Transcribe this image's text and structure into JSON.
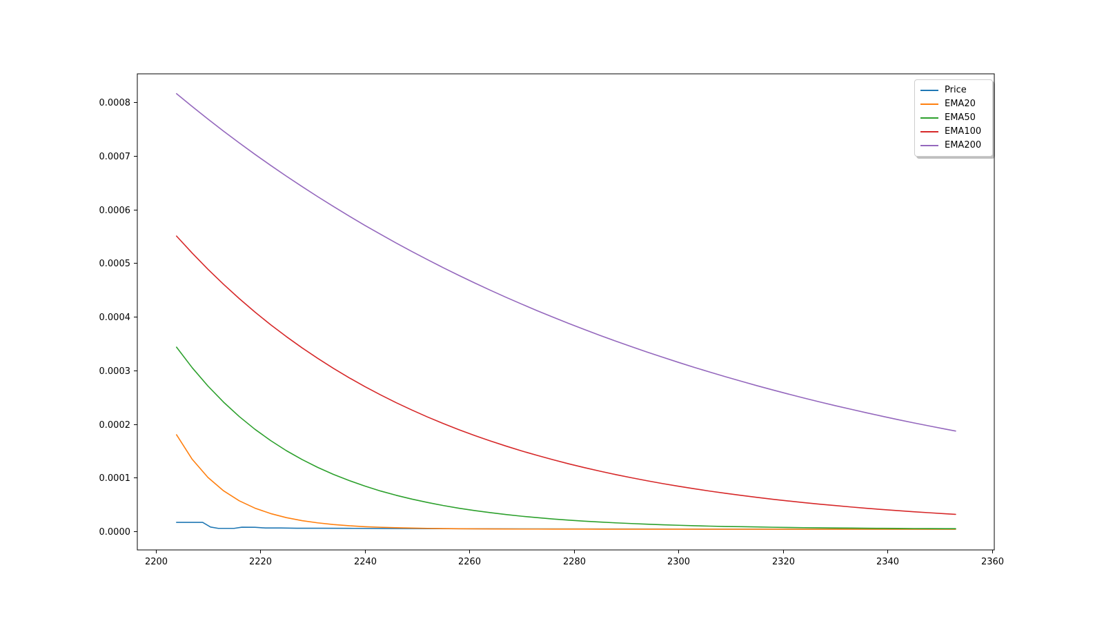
{
  "chart_data": {
    "type": "line",
    "title": "",
    "xlabel": "",
    "ylabel": "",
    "grid": false,
    "background": "#ffffff",
    "xlim": [
      2196.5,
      2360.4
    ],
    "ylim": [
      -3.47e-05,
      0.000853
    ],
    "legend": {
      "position": "upper right"
    },
    "x_ticks": {
      "values": [
        2200,
        2220,
        2240,
        2260,
        2280,
        2300,
        2320,
        2340,
        2360
      ],
      "labels": [
        "2200",
        "2220",
        "2240",
        "2260",
        "2280",
        "2300",
        "2320",
        "2340",
        "2360"
      ]
    },
    "y_ticks": {
      "values": [
        0.0,
        0.0001,
        0.0002,
        0.0003,
        0.0004,
        0.0005,
        0.0006,
        0.0007,
        0.0008
      ],
      "labels": [
        "0.0000",
        "0.0001",
        "0.0002",
        "0.0003",
        "0.0004",
        "0.0005",
        "0.0006",
        "0.0007",
        "0.0008"
      ]
    },
    "x": [
      2204,
      2207,
      2210,
      2213,
      2216,
      2219,
      2222,
      2225,
      2228,
      2231,
      2234,
      2237,
      2240,
      2243,
      2246,
      2249,
      2252,
      2255,
      2258,
      2261,
      2264,
      2267,
      2270,
      2273,
      2276,
      2279,
      2282,
      2285,
      2288,
      2291,
      2294,
      2297,
      2300,
      2303,
      2306,
      2309,
      2312,
      2315,
      2318,
      2321,
      2324,
      2327,
      2330,
      2333,
      2336,
      2339,
      2342,
      2345,
      2348,
      2351,
      2353
    ],
    "series": [
      {
        "name": "Price",
        "color": "#1f77b4",
        "x": [
          2204,
          2209,
          2210.5,
          2212,
          2215,
          2216.5,
          2219,
          2221,
          2224,
          2227,
          2232,
          2238,
          2245,
          2252,
          2260,
          2270,
          2285,
          2300,
          2320,
          2340,
          2353
        ],
        "y": [
          1.67e-05,
          1.67e-05,
          8e-06,
          5.5e-06,
          5.5e-06,
          7.7e-06,
          7.5e-06,
          6.2e-06,
          6.2e-06,
          5.8e-06,
          5.8e-06,
          5.5e-06,
          5.3e-06,
          5e-06,
          4.8e-06,
          4.5e-06,
          4.3e-06,
          4.2e-06,
          4.1e-06,
          4e-06,
          4e-06
        ]
      },
      {
        "name": "EMA20",
        "color": "#ff7f0e",
        "y": [
          0.0001801,
          0.0001343,
          0.0001005,
          7.55e-05,
          5.69e-05,
          4.32e-05,
          3.31e-05,
          2.55e-05,
          1.99e-05,
          1.58e-05,
          1.27e-05,
          1.04e-05,
          8.7e-06,
          7.6e-06,
          6.7e-06,
          6e-06,
          5.5e-06,
          5.1e-06,
          4.8e-06,
          4.6e-06,
          4.4e-06,
          4.3e-06,
          4.2e-06,
          4.2e-06,
          4.1e-06,
          4.1e-06,
          4.1e-06,
          4e-06,
          4e-06,
          4e-06,
          4e-06,
          4e-06,
          4e-06,
          4e-06,
          4e-06,
          4e-06,
          4e-06,
          4e-06,
          4e-06,
          4e-06,
          4e-06,
          4e-06,
          4e-06,
          4e-06,
          4e-06,
          4e-06,
          4e-06,
          4e-06,
          4e-06,
          4e-06,
          4e-06
        ]
      },
      {
        "name": "EMA50",
        "color": "#2ca02c",
        "y": [
          0.0003434,
          0.000305,
          0.000271,
          0.0002408,
          0.000214,
          0.0001902,
          0.0001692,
          0.0001504,
          0.0001339,
          0.0001192,
          0.0001062,
          9.47e-05,
          8.44e-05,
          7.52e-05,
          6.72e-05,
          6.01e-05,
          5.38e-05,
          4.81e-05,
          4.31e-05,
          3.87e-05,
          3.48e-05,
          3.13e-05,
          2.82e-05,
          2.55e-05,
          2.3e-05,
          2.09e-05,
          1.89e-05,
          1.73e-05,
          1.58e-05,
          1.45e-05,
          1.33e-05,
          1.22e-05,
          1.13e-05,
          1.04e-05,
          9.7e-06,
          9e-06,
          8.6e-06,
          8.1e-06,
          7.6e-06,
          7.2e-06,
          6.8e-06,
          6.5e-06,
          6.2e-06,
          6e-06,
          5.7e-06,
          5.6e-06,
          5.4e-06,
          5.2e-06,
          5.1e-06,
          5e-06,
          4.9e-06
        ]
      },
      {
        "name": "EMA100",
        "color": "#d62728",
        "y": [
          0.0005505,
          0.0005187,
          0.0004887,
          0.0004605,
          0.0004339,
          0.0004088,
          0.0003852,
          0.0003631,
          0.0003422,
          0.0003225,
          0.0003039,
          0.0002864,
          0.00027,
          0.0002545,
          0.0002399,
          0.0002262,
          0.0002132,
          0.000201,
          0.0001895,
          0.0001787,
          0.0001685,
          0.000159,
          0.0001499,
          0.0001415,
          0.0001335,
          0.0001259,
          0.0001188,
          0.0001121,
          0.0001058,
          9.99e-05,
          9.43e-05,
          8.9e-05,
          8.41e-05,
          7.94e-05,
          7.5e-05,
          7.09e-05,
          6.7e-05,
          6.33e-05,
          5.98e-05,
          5.66e-05,
          5.35e-05,
          5.06e-05,
          4.8e-05,
          4.54e-05,
          4.29e-05,
          4.06e-05,
          3.86e-05,
          3.65e-05,
          3.46e-05,
          3.28e-05,
          3.17e-05
        ]
      },
      {
        "name": "EMA200",
        "color": "#9467bd",
        "y": [
          0.000816,
          0.000792,
          0.0007687,
          0.0007461,
          0.0007242,
          0.0007029,
          0.0006823,
          0.0006623,
          0.0006429,
          0.000624,
          0.0006057,
          0.0005879,
          0.0005706,
          0.0005539,
          0.0005376,
          0.0005218,
          0.0005065,
          0.0004916,
          0.0004772,
          0.0004632,
          0.0004496,
          0.0004364,
          0.0004237,
          0.0004113,
          0.0003993,
          0.0003876,
          0.0003763,
          0.0003653,
          0.0003546,
          0.0003443,
          0.0003342,
          0.0003245,
          0.000315,
          0.0003058,
          0.0002969,
          0.0002882,
          0.0002798,
          0.0002716,
          0.0002637,
          0.000256,
          0.0002485,
          0.0002413,
          0.0002343,
          0.0002276,
          0.0002209,
          0.0002145,
          0.0002082,
          0.0002022,
          0.0001964,
          0.0001907,
          0.000187
        ]
      }
    ]
  }
}
